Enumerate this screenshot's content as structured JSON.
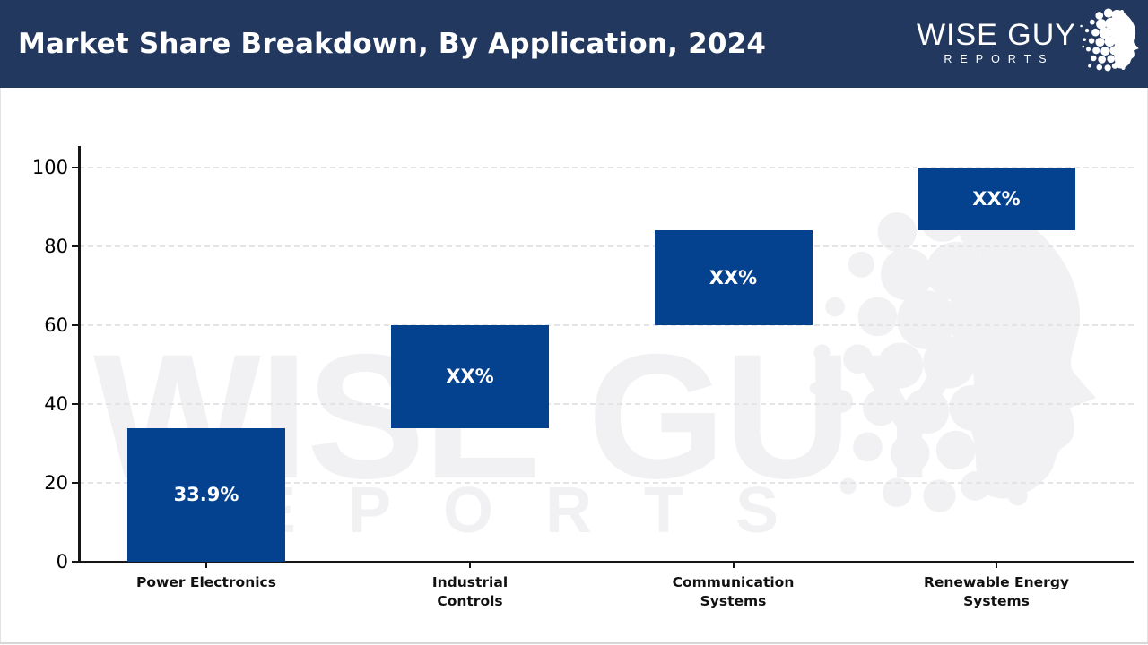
{
  "header": {
    "title": "Market Share Breakdown, By Application, 2024",
    "logo": {
      "wordmark": "WISE GUY",
      "subtext": "REPORTS"
    }
  },
  "watermark": {
    "wordmark": "WISE GUY",
    "subtext": "REPORTS"
  },
  "colors": {
    "header_bg": "#22385f",
    "bar": "#04428f",
    "bar_label": "#ffffff",
    "grid": "#e4e4e6",
    "axis": "#161616",
    "watermark": "#f1f1f3",
    "logo": "#ffffff"
  },
  "chart_data": {
    "type": "bar",
    "subtype": "waterfall",
    "title": "Market Share Breakdown, By Application, 2024",
    "xlabel": "",
    "ylabel": "",
    "ylim": [
      0,
      100
    ],
    "yticks": [
      0,
      20,
      40,
      60,
      80,
      100
    ],
    "grid": "horizontal-dashed",
    "legend": "none",
    "categories": [
      {
        "name": "Power Electronics",
        "lines": [
          "Power Electronics"
        ]
      },
      {
        "name": "Industrial Controls",
        "lines": [
          "Industrial",
          "Controls"
        ]
      },
      {
        "name": "Communication Systems",
        "lines": [
          "Communication",
          "Systems"
        ]
      },
      {
        "name": "Renewable Energy Systems",
        "lines": [
          "Renewable Energy",
          "Systems"
        ]
      }
    ],
    "segments": [
      {
        "category": "Power Electronics",
        "start": 0,
        "end": 33.9,
        "value": 33.9,
        "value_label": "33.9%"
      },
      {
        "category": "Industrial Controls",
        "start": 33.9,
        "end": 60,
        "value": 26.1,
        "value_label": "XX%"
      },
      {
        "category": "Communication Systems",
        "start": 60,
        "end": 84,
        "value": 24,
        "value_label": "XX%"
      },
      {
        "category": "Renewable Energy Systems",
        "start": 84,
        "end": 100,
        "value": 16,
        "value_label": "XX%"
      }
    ]
  }
}
